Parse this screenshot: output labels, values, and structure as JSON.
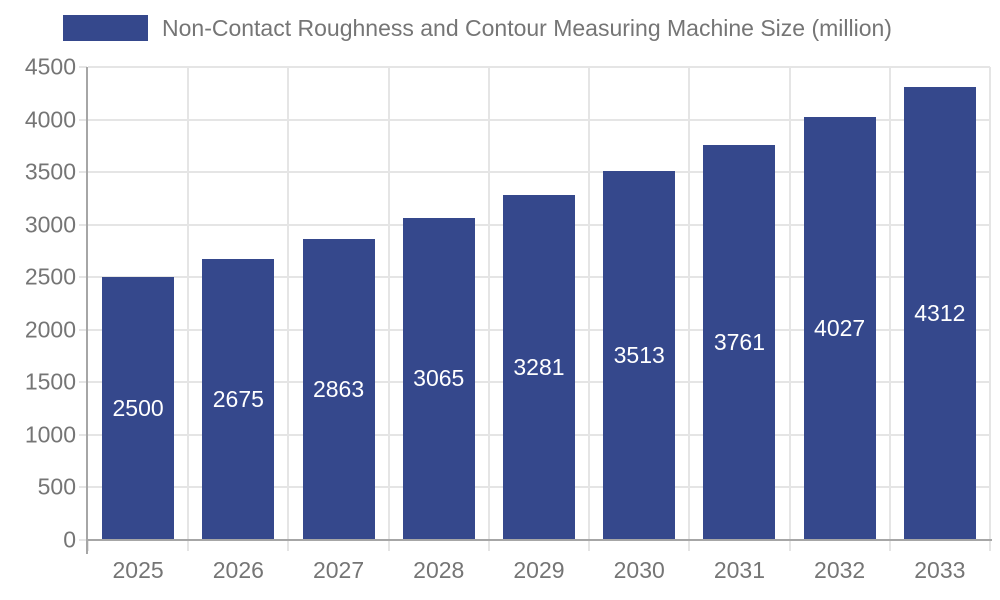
{
  "colors": {
    "bar": "#35488C",
    "axis_line": "#A6A6A6",
    "grid_line": "#E5E5E5",
    "axis_text": "#757575",
    "value_label_text": "#FFFFFF",
    "background": "#FFFFFF"
  },
  "legend": {
    "swatch_color": "#35488C"
  },
  "chart_data": {
    "type": "bar",
    "title": "Non-Contact Roughness and Contour Measuring Machine Size (million)",
    "categories": [
      "2025",
      "2026",
      "2027",
      "2028",
      "2029",
      "2030",
      "2031",
      "2032",
      "2033"
    ],
    "values": [
      2500,
      2675,
      2863,
      3065,
      3281,
      3513,
      3761,
      4027,
      4312
    ],
    "xlabel": "",
    "ylabel": "",
    "ylim": [
      0,
      4500
    ],
    "ytick_interval": 500,
    "yticks": [
      0,
      500,
      1000,
      1500,
      2000,
      2500,
      3000,
      3500,
      4000,
      4500
    ],
    "grid": true,
    "legend_position": "top-left",
    "value_label_position": "inside-center"
  }
}
